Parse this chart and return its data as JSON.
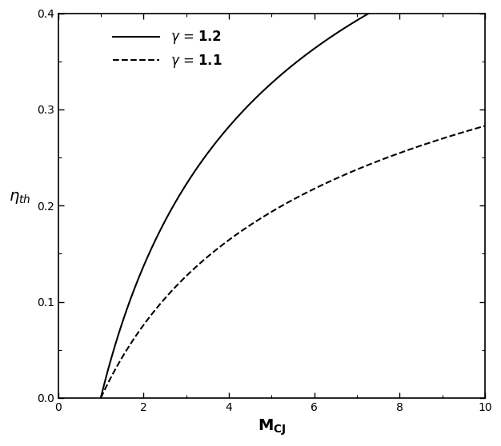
{
  "gamma_1": 1.2,
  "gamma_2": 1.1,
  "M_min": 1.0,
  "M_max": 10.0,
  "xlim": [
    0,
    10
  ],
  "ylim": [
    0,
    0.4
  ],
  "xticks": [
    0,
    2,
    4,
    6,
    8,
    10
  ],
  "yticks": [
    0,
    0.1,
    0.2,
    0.3,
    0.4
  ],
  "line_color": "#000000",
  "line_width": 1.5,
  "figsize": [
    6.26,
    5.58
  ],
  "dpi": 100
}
